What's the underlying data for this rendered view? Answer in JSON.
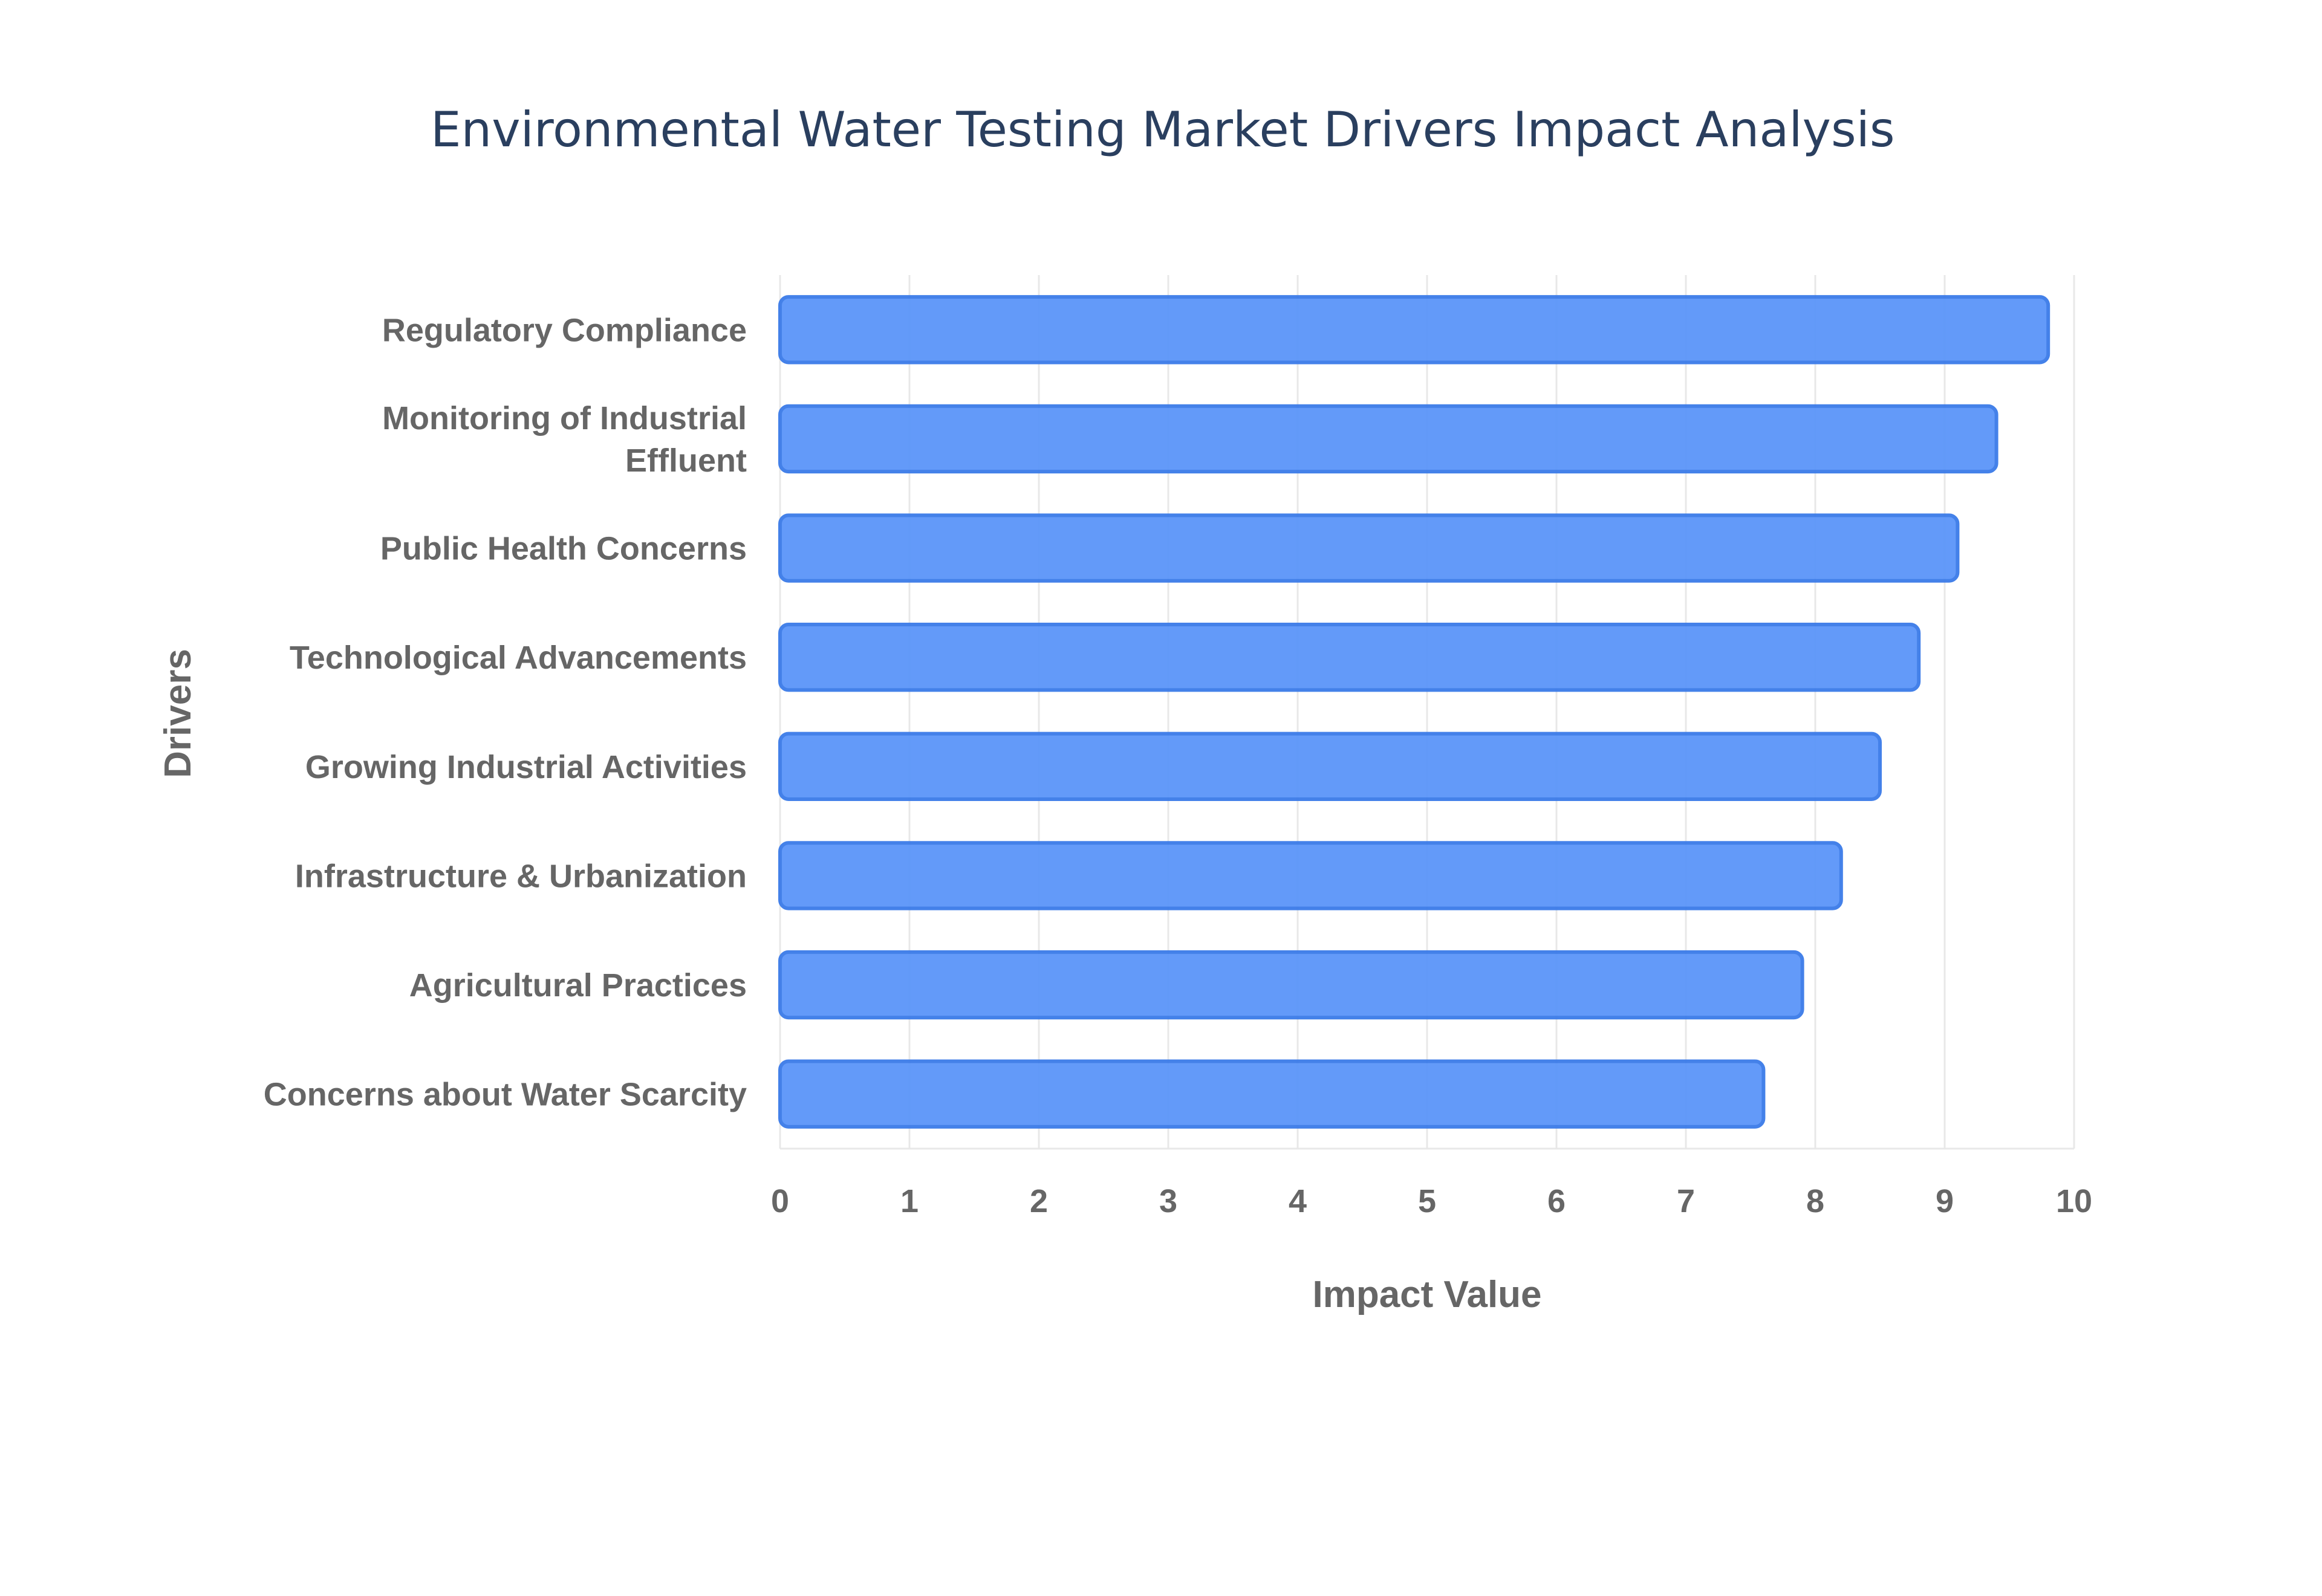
{
  "chart_data": {
    "type": "bar",
    "orientation": "horizontal",
    "title": "Environmental Water Testing Market Drivers Impact Analysis",
    "xlabel": "Impact Value",
    "ylabel": "Drivers",
    "categories": [
      [
        "Regulatory Compliance"
      ],
      [
        "Monitoring of Industrial",
        "Effluent"
      ],
      [
        "Public Health Concerns"
      ],
      [
        "Technological Advancements"
      ],
      [
        "Growing Industrial Activities"
      ],
      [
        "Infrastructure & Urbanization"
      ],
      [
        "Agricultural Practices"
      ],
      [
        "Concerns about Water Scarcity"
      ]
    ],
    "values": [
      9.8,
      9.4,
      9.1,
      8.8,
      8.5,
      8.2,
      7.9,
      7.6
    ],
    "xlim": [
      0,
      10
    ],
    "xticks": [
      "0",
      "1",
      "2",
      "3",
      "4",
      "5",
      "6",
      "7",
      "8",
      "9",
      "10"
    ],
    "grid": true,
    "colors": {
      "bar_fill": "#5b95f9",
      "bar_edge": "#3b7be8",
      "text": "#666666",
      "title": "#2a3f5f"
    }
  }
}
